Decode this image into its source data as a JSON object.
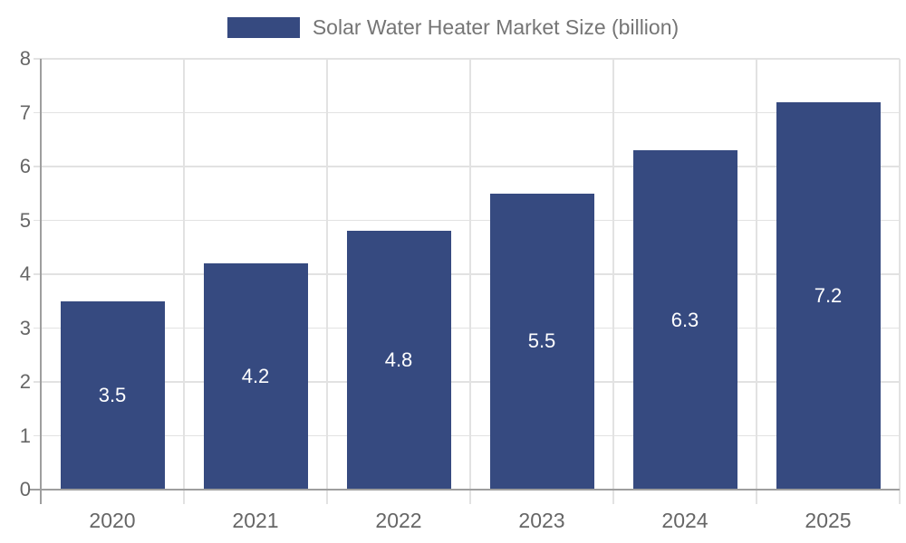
{
  "legend": {
    "label": "Solar Water Heater Market Size (billion)"
  },
  "chart_data": {
    "type": "bar",
    "title": "Solar Water Heater Market Size (billion)",
    "categories": [
      "2020",
      "2021",
      "2022",
      "2023",
      "2024",
      "2025"
    ],
    "values": [
      3.5,
      4.2,
      4.8,
      5.5,
      6.3,
      7.2
    ],
    "value_labels": [
      "3.5",
      "4.2",
      "4.8",
      "5.5",
      "6.3",
      "7.2"
    ],
    "xlabel": "",
    "ylabel": "",
    "ylim": [
      0,
      8
    ],
    "yticks": [
      0,
      1,
      2,
      3,
      4,
      5,
      6,
      7,
      8
    ],
    "grid": true,
    "legend_position": "top",
    "bar_color": "#364a80",
    "value_label_color": "#ffffff",
    "grid_color": "#e2e2e2",
    "axis_color": "#9e9e9e",
    "tick_label_color": "#666666",
    "legend_text_color": "#757575",
    "background_color": "#ffffff"
  }
}
